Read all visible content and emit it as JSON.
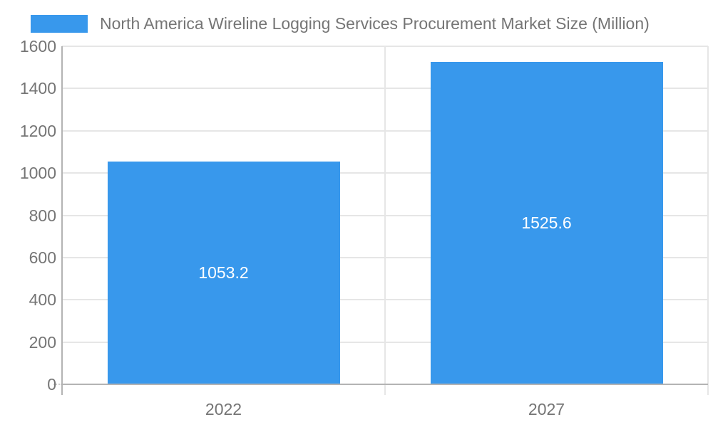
{
  "chart_data": {
    "type": "bar",
    "series_name": "North America Wireline Logging Services Procurement Market Size (Million)",
    "categories": [
      "2022",
      "2027"
    ],
    "values": [
      1053.2,
      1525.6
    ],
    "value_labels": [
      "1053.2",
      "1525.6"
    ],
    "title": "",
    "xlabel": "",
    "ylabel": "",
    "ylim": [
      0,
      1600
    ],
    "yticks": [
      0,
      200,
      400,
      600,
      800,
      1000,
      1200,
      1400,
      1600
    ],
    "grid": true,
    "legend_position": "top-left",
    "colors": {
      "bar": "#3898EC",
      "value_label": "#FFFFFF",
      "axis_text": "#757575",
      "gridline": "#E6E6E6",
      "axis_line": "#B3B3B3",
      "background": "#FFFFFF"
    }
  }
}
